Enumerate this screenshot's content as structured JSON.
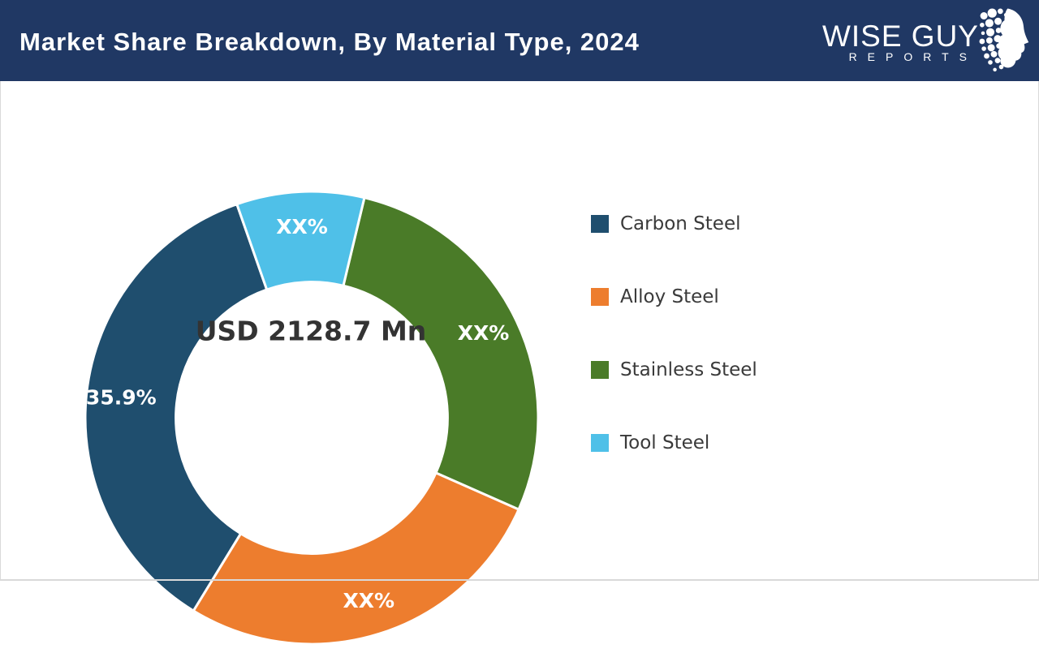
{
  "header": {
    "title": "Market Share Breakdown, By Material Type, 2024",
    "logo_line1": "WISE GUY",
    "logo_line2": "REPORTS"
  },
  "watermark": {
    "line1": "WISE GUY",
    "line2": "REPORTS"
  },
  "chart_data": {
    "type": "pie",
    "subtype": "donut",
    "title": "Market Share Breakdown, By Material Type, 2024",
    "center_label": "USD 2128.7 Mn",
    "start_angle_deg": 109.3,
    "direction": "counterclockwise",
    "inner_radius_ratio": 0.6,
    "legend_position": "right",
    "segments": [
      {
        "label": "Carbon Steel",
        "value_pct": 35.9,
        "display_label": "35.9%",
        "color": "#1f4e6e"
      },
      {
        "label": "Alloy Steel",
        "value_pct": 27.1,
        "display_label": "XX%",
        "color": "#ed7d2e"
      },
      {
        "label": "Stainless Steel",
        "value_pct": 27.9,
        "display_label": "XX%",
        "color": "#4a7b28"
      },
      {
        "label": "Tool Steel",
        "value_pct": 9.1,
        "display_label": "XX%",
        "color": "#4fc0e8"
      }
    ],
    "colors": {
      "header_bg": "#203864",
      "slice_label_text": "#ffffff",
      "center_text": "#333333",
      "legend_text": "#3a3a3a",
      "watermark": "#f2f2f2",
      "divider": "#d9d9d9"
    }
  }
}
